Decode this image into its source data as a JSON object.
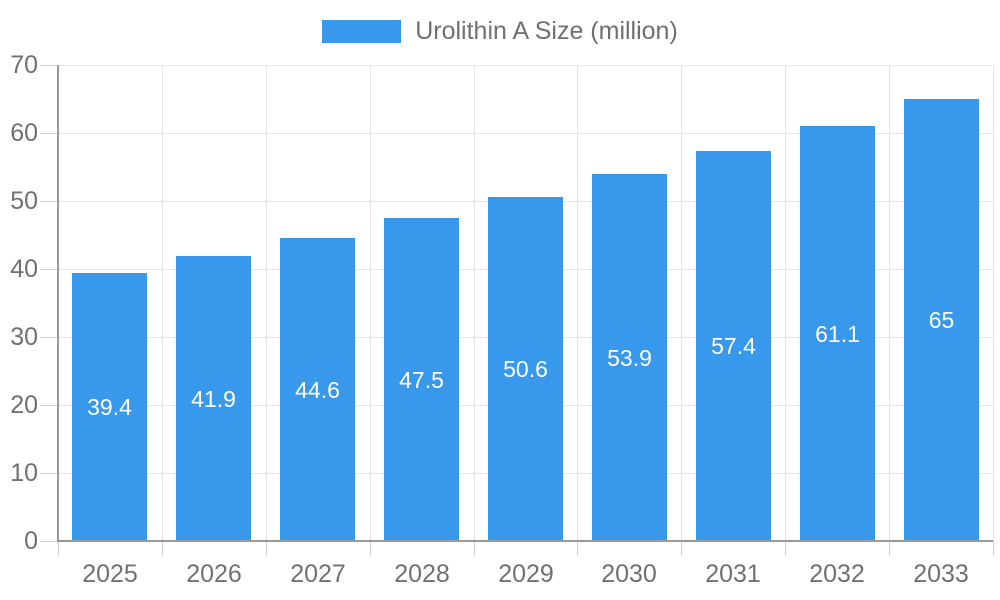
{
  "chart_data": {
    "type": "bar",
    "categories": [
      "2025",
      "2026",
      "2027",
      "2028",
      "2029",
      "2030",
      "2031",
      "2032",
      "2033"
    ],
    "series": [
      {
        "name": "Urolithin A Size (million)",
        "values": [
          39.4,
          41.9,
          44.6,
          47.5,
          50.6,
          53.9,
          57.4,
          61.1,
          65
        ],
        "value_labels": [
          "39.4",
          "41.9",
          "44.6",
          "47.5",
          "50.6",
          "53.9",
          "57.4",
          "61.1",
          "65"
        ]
      }
    ],
    "xlabel": "",
    "ylabel": "",
    "ylim": [
      0,
      70
    ],
    "ytick_step": 10,
    "grid": true,
    "legend_position": "top center",
    "value_label_placement": "inside-middle"
  },
  "colors": {
    "bar": "#3899EC",
    "grid": "#E5E5E5",
    "tick": "#CFCFCF",
    "axis": "#999999",
    "label_text": "#707070",
    "bar_label": "#FFFFFF",
    "background": "#FFFFFF"
  }
}
